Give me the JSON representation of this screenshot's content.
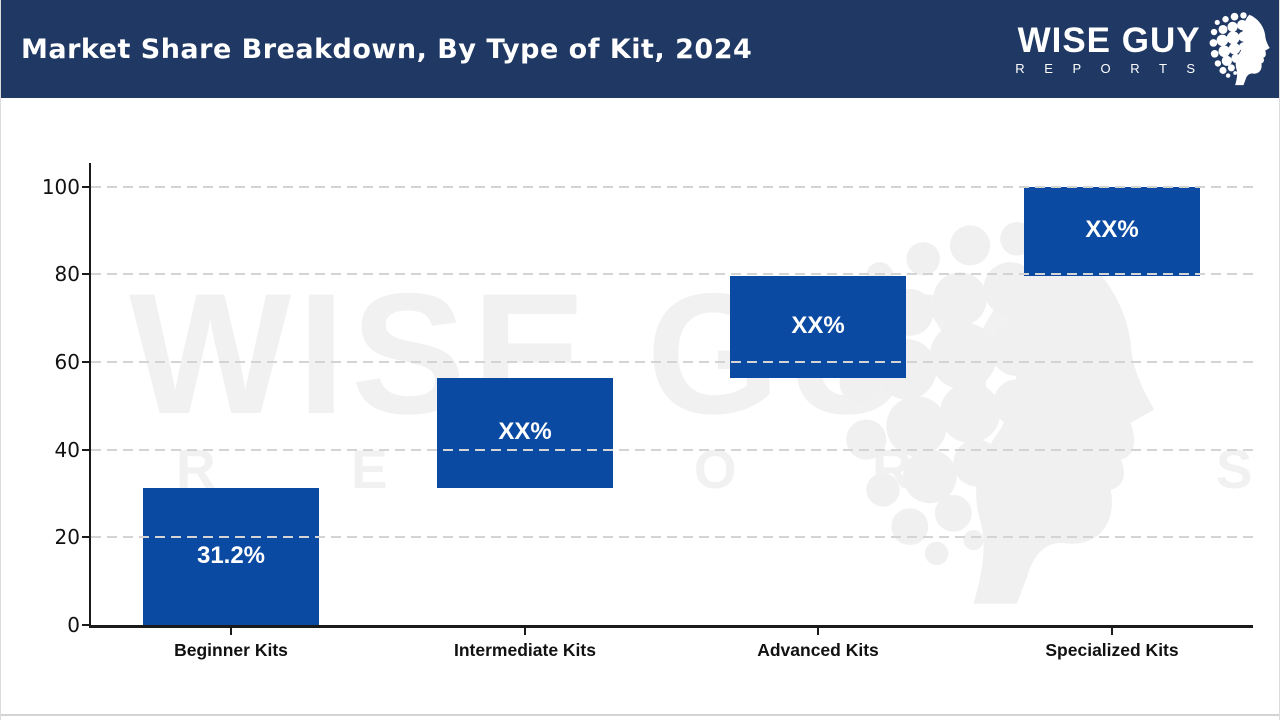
{
  "header": {
    "title": "Market Share Breakdown, By Type of Kit, 2024",
    "logo": {
      "name": "WISE GUY",
      "tagline": "R E P O R T S"
    }
  },
  "watermark": {
    "name": "WISE GUY",
    "tagline": "R E P O R T S"
  },
  "chart_data": {
    "type": "waterfall",
    "title": "Market Share Breakdown, By Type of Kit, 2024",
    "categories": [
      "Beginner Kits",
      "Intermediate Kits",
      "Advanced Kits",
      "Specialized Kits"
    ],
    "series": [
      {
        "name": "Market Share",
        "segments": [
          {
            "category": "Beginner Kits",
            "start": 0,
            "end": 31.2,
            "label": "31.2%"
          },
          {
            "category": "Intermediate Kits",
            "start": 31.2,
            "end": 56.3,
            "label": "XX%"
          },
          {
            "category": "Advanced Kits",
            "start": 56.3,
            "end": 79.6,
            "label": "XX%"
          },
          {
            "category": "Specialized Kits",
            "start": 79.6,
            "end": 100,
            "label": "XX%"
          }
        ]
      }
    ],
    "xlabel": "",
    "ylabel": "",
    "ylim": [
      0,
      105.5
    ],
    "yticks": [
      0,
      20,
      40,
      60,
      80,
      100
    ],
    "grid": "horizontal-dashed",
    "legend": "none"
  },
  "colors": {
    "header_bg": "#203864",
    "bar": "#0b4aa2",
    "bar_label": "#ffffff",
    "grid": "#d4d4d4",
    "axis": "#1a1a1a",
    "watermark": "#f1f1f1",
    "background": "#ffffff"
  }
}
